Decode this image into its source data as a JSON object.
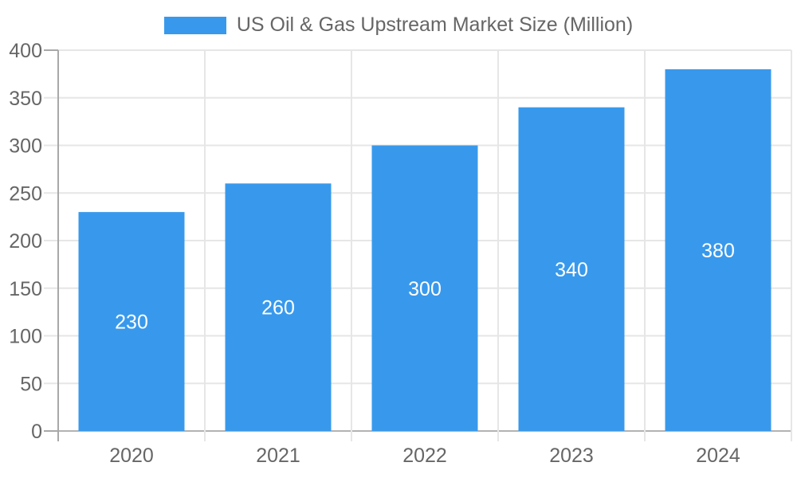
{
  "chart_data": {
    "type": "bar",
    "title": "US Oil & Gas Upstream Market Size (Million)",
    "categories": [
      "2020",
      "2021",
      "2022",
      "2023",
      "2024"
    ],
    "values": [
      230,
      260,
      300,
      340,
      380
    ],
    "series": [
      {
        "name": "US Oil & Gas Upstream Market Size (Million)",
        "values": [
          230,
          260,
          300,
          340,
          380
        ]
      }
    ],
    "xlabel": "",
    "ylabel": "",
    "ylim": [
      0,
      400
    ],
    "ytick_step": 50,
    "yticks": [
      0,
      50,
      100,
      150,
      200,
      250,
      300,
      350,
      400
    ],
    "grid": true,
    "legend_position": "top",
    "bar_value_labels_visible": true,
    "colors": {
      "bar": "#3899EC",
      "grid": "#E6E6E6",
      "axis_line": "#A8A8A8",
      "zero_line": "#B3B3B3",
      "tick_text": "#666666",
      "legend_text": "#666666",
      "bar_label_text": "#FFFFFF",
      "background": "#FFFFFF"
    }
  }
}
